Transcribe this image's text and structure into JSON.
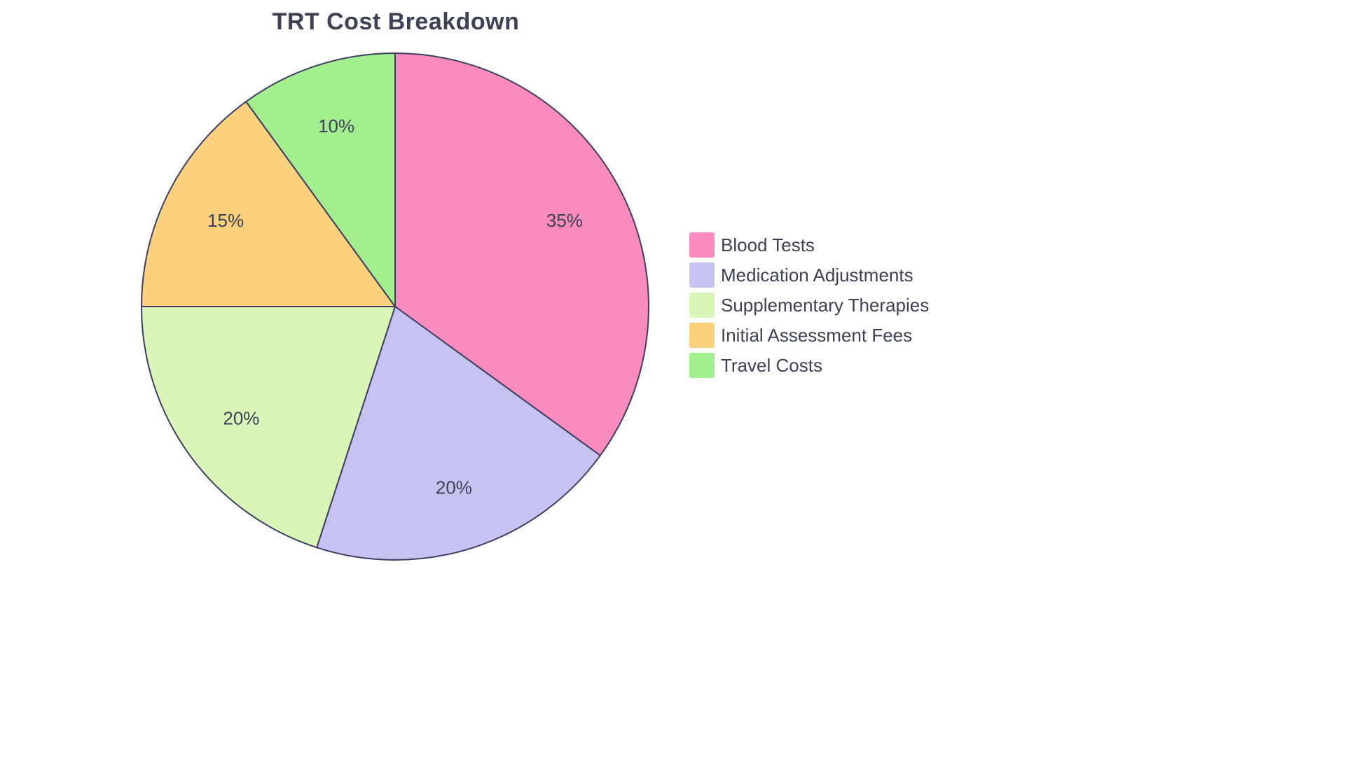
{
  "page": {
    "background": "#FFFFFF",
    "text_color": "#3D4156"
  },
  "chart_data": {
    "type": "pie",
    "title": "TRT Cost Breakdown",
    "labels": [
      "Blood Tests",
      "Medication Adjustments",
      "Supplementary Therapies",
      "Initial Assessment Fees",
      "Travel Costs"
    ],
    "values": [
      35,
      20,
      20,
      15,
      10
    ],
    "slice_labels": [
      "35%",
      "20%",
      "20%",
      "15%",
      "10%"
    ],
    "colors": [
      "#F98BBE",
      "#C6C3F2",
      "#DAF5B8",
      "#FBD17D",
      "#A3EE8F"
    ],
    "stroke_color": "#3E3E60",
    "label_color": "#3D4156",
    "start_angle_deg": 0,
    "direction": "clockwise",
    "legend_position": "right",
    "grid": false
  }
}
